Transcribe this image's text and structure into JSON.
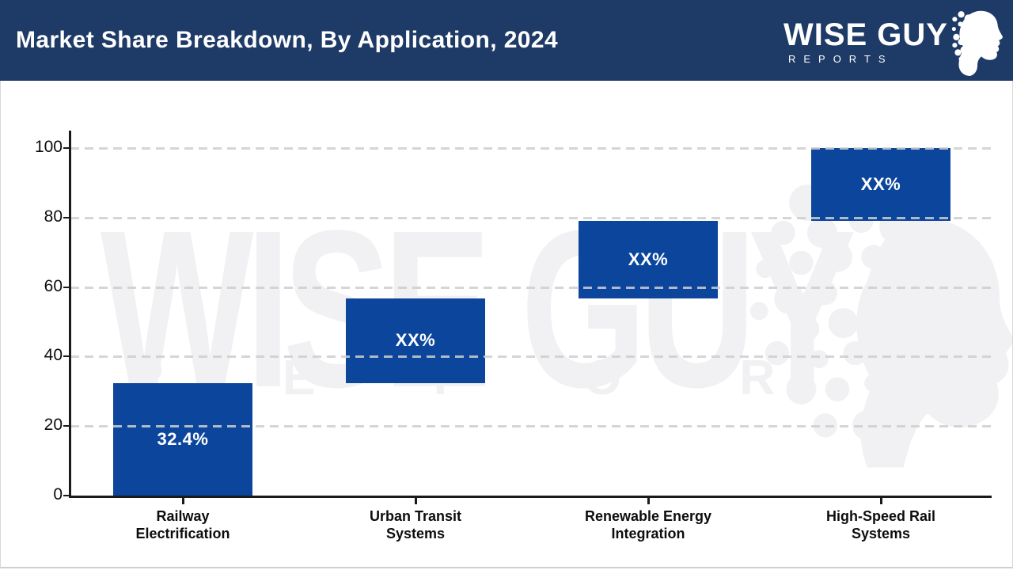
{
  "header": {
    "title": "Market Share Breakdown, By Application, 2024",
    "logo": {
      "name": "WISE GUY",
      "subtitle": "REPORTS"
    }
  },
  "watermark": {
    "name": "WISE GUY",
    "subtitle": "R E P O R T S"
  },
  "chart_data": {
    "type": "bar",
    "subtype": "waterfall",
    "title": "Market Share Breakdown, By Application, 2024",
    "categories": [
      "Railway\nElectrification",
      "Urban Transit\nSystems",
      "Renewable Energy\nIntegration",
      "High-Speed Rail\nSystems"
    ],
    "series": [
      {
        "category": "Railway Electrification",
        "start": 0,
        "end": 32.4,
        "value_label": "32.4%"
      },
      {
        "category": "Urban Transit Systems",
        "start": 32.4,
        "end": 56.7,
        "value_label": "XX%"
      },
      {
        "category": "Renewable Energy Integration",
        "start": 56.7,
        "end": 79.0,
        "value_label": "XX%"
      },
      {
        "category": "High-Speed Rail Systems",
        "start": 79.0,
        "end": 100.0,
        "value_label": "XX%"
      }
    ],
    "y_ticks": [
      0,
      20,
      40,
      60,
      80,
      100
    ],
    "ylim": [
      0,
      100
    ],
    "grid": "horizontal-dashed",
    "legend": "none",
    "bar_color": "#0b469c",
    "bar_label_color": "#ffffff"
  },
  "colors": {
    "header_bg": "#1e3a66",
    "bar": "#0b469c",
    "grid": "#d2d2d2",
    "axis": "#1a1a1a",
    "watermark": "#f1f1f3",
    "border": "#d8d8d8"
  }
}
